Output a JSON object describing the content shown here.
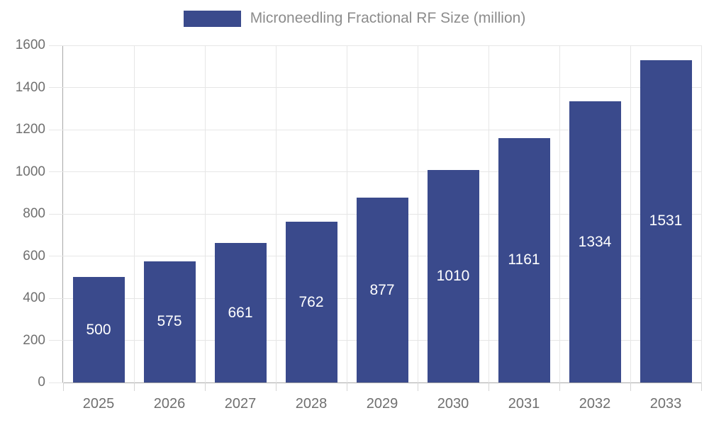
{
  "chart_data": {
    "type": "bar",
    "title": "Microneedling Fractional RF Size (million)",
    "categories": [
      "2025",
      "2026",
      "2027",
      "2028",
      "2029",
      "2030",
      "2031",
      "2032",
      "2033"
    ],
    "values": [
      500,
      575,
      661,
      762,
      877,
      1010,
      1161,
      1334,
      1531
    ],
    "xlabel": "",
    "ylabel": "",
    "ylim": [
      0,
      1600
    ],
    "yticks": [
      0,
      200,
      400,
      600,
      800,
      1000,
      1200,
      1400,
      1600
    ],
    "grid": true,
    "legend_position": "top",
    "colors": {
      "bar": "#3a4a8c",
      "bar_value_text": "#ffffff",
      "axis_text": "#6f6f6f",
      "legend_text": "#8c8c8c",
      "gridline": "#e6e6e6",
      "axis_line": "#a8a8a8",
      "tick": "#d4d4d4",
      "background": "#ffffff"
    }
  }
}
